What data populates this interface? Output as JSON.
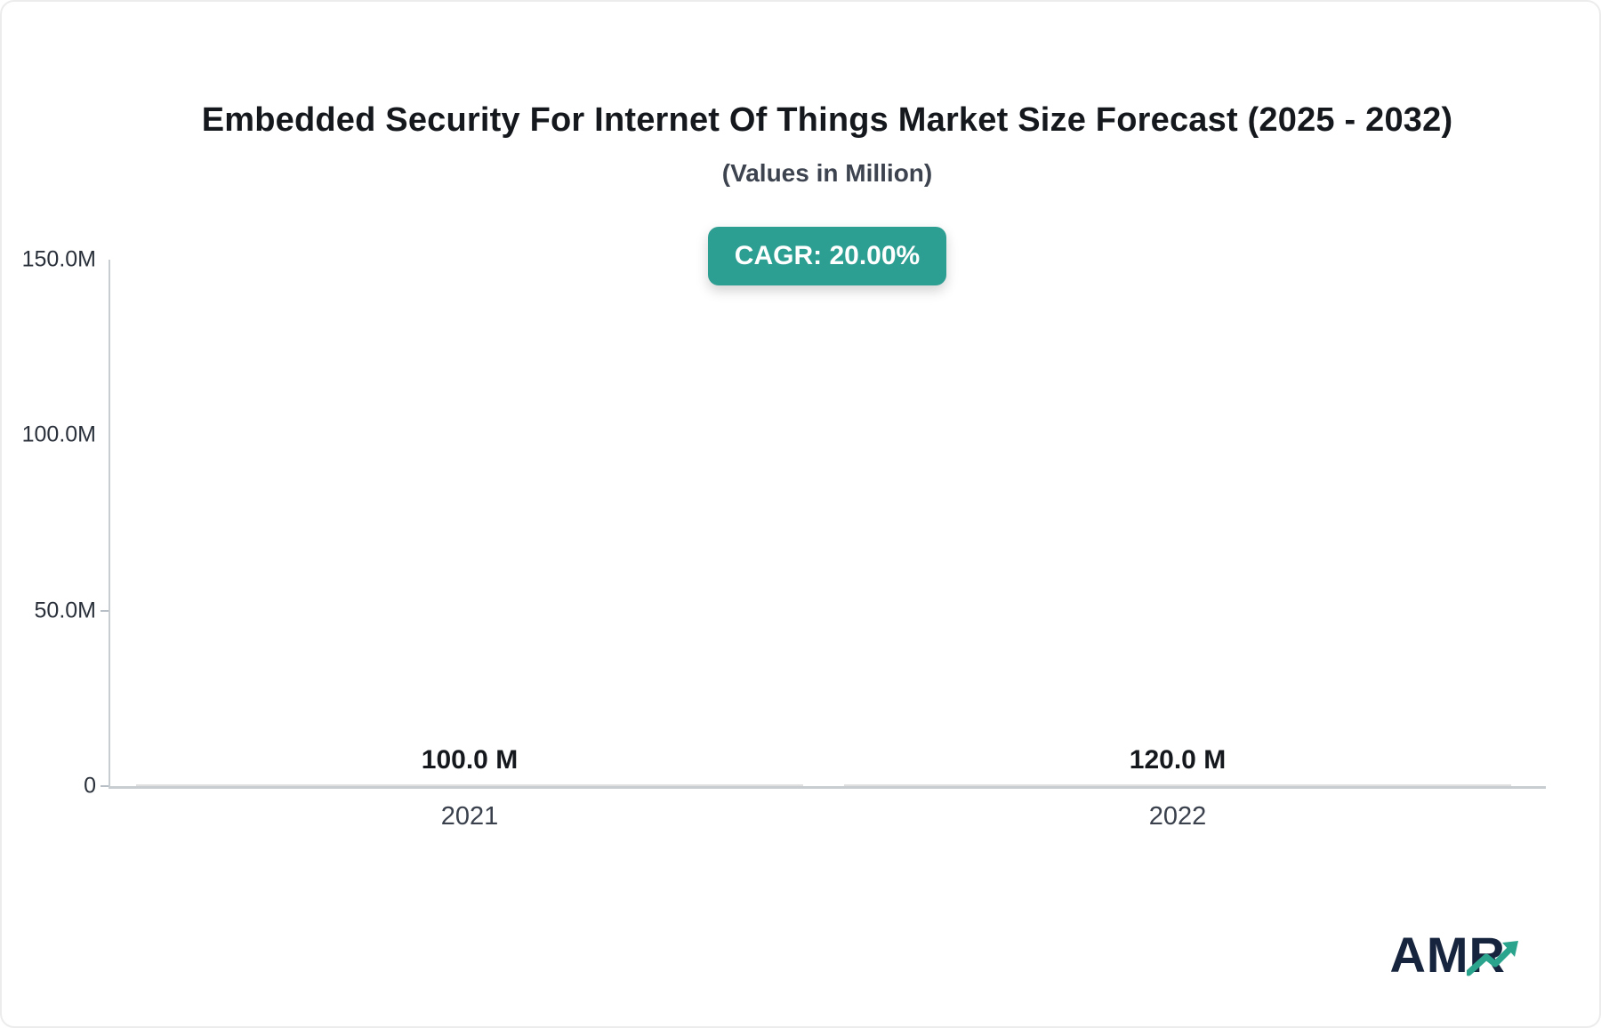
{
  "title": "Embedded Security For Internet Of Things Market Size Forecast (2025 - 2032)",
  "subtitle": "(Values in Million)",
  "badge": {
    "label": "CAGR: 20.00%",
    "color": "#2d9e92"
  },
  "logo": {
    "text": "AMR"
  },
  "chart_data": {
    "type": "bar",
    "categories": [
      "2021",
      "2022"
    ],
    "values": [
      100.0,
      120.0
    ],
    "value_labels": [
      "100.0 M",
      "120.0 M"
    ],
    "title": "Embedded Security For Internet Of Things Market Size Forecast (2025 - 2032)",
    "subtitle": "(Values in Million)",
    "xlabel": "",
    "ylabel": "",
    "ylim": [
      0,
      150
    ],
    "yticks": [
      "150.0M",
      "100.0M",
      "50.0M",
      "0"
    ],
    "grid": "off",
    "legend": "none",
    "bar_color_top": "#4ab4a6",
    "bar_color_bottom": "#2aa48d",
    "annotation": "CAGR: 20.00%"
  }
}
